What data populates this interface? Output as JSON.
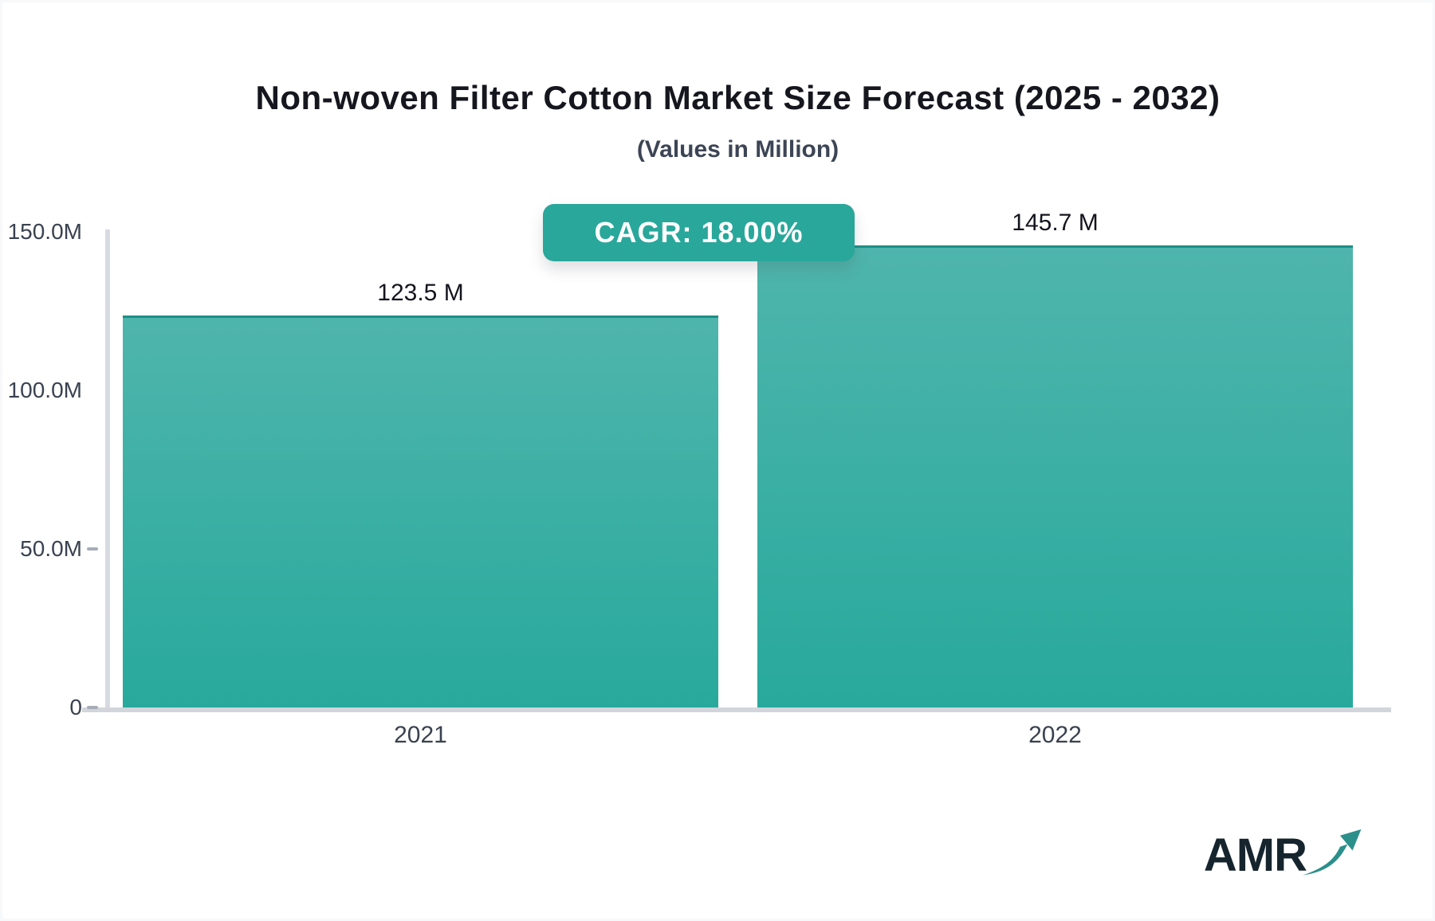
{
  "chart_data": {
    "type": "bar",
    "title": "Non-woven Filter Cotton Market Size Forecast (2025 - 2032)",
    "subtitle": "(Values in Million)",
    "categories": [
      "2021",
      "2022"
    ],
    "values": [
      123.5,
      145.7
    ],
    "value_labels": [
      "123.5 M",
      "145.7 M"
    ],
    "ylim": [
      0,
      150
    ],
    "yticks": [
      {
        "value": 150,
        "label": "150.0M",
        "dash": false
      },
      {
        "value": 100,
        "label": "100.0M",
        "dash": false
      },
      {
        "value": 50,
        "label": "50.0M",
        "dash": true
      },
      {
        "value": 0,
        "label": "0",
        "dash": true
      }
    ],
    "grid": false,
    "legend": false,
    "bar_color_top": "#4fb5ac",
    "bar_color_bottom": "#28a99c",
    "bar_edge_color": "#1d8f87"
  },
  "badge": {
    "label": "CAGR: 18.00%",
    "color": "#29a79b",
    "text_color": "#ffffff"
  },
  "logo": {
    "text": "AMR",
    "arrow_icon": "trend-up-arrow",
    "text_color": "#16242e",
    "arrow_color": "#2b8f8b"
  }
}
